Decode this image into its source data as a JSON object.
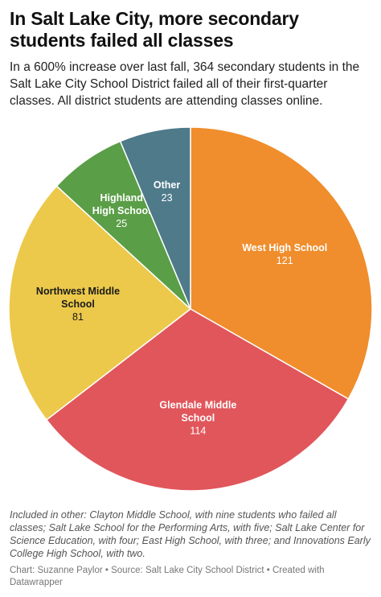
{
  "header": {
    "title": "In Salt Lake City, more secondary students failed all classes",
    "subtitle": "In a 600% increase over last fall, 364 secondary students in the Salt Lake City School District failed all of their first-quarter classes. All district students are attending classes online."
  },
  "chart_data": {
    "type": "pie",
    "slices": [
      {
        "label": [
          "West High School"
        ],
        "value": 121,
        "color": "#f08d2c",
        "text_color": "#ffffff",
        "bold_label": true
      },
      {
        "label": [
          "Glendale Middle",
          "School"
        ],
        "value": 114,
        "color": "#e0565b",
        "text_color": "#ffffff",
        "bold_label": true
      },
      {
        "label": [
          "Northwest Middle",
          "School"
        ],
        "value": 81,
        "color": "#ecc94b",
        "text_color": "#1a1a1a",
        "bold_label": true
      },
      {
        "label": [
          "Highland",
          "High School"
        ],
        "value": 25,
        "color": "#5a9e47",
        "text_color": "#ffffff",
        "bold_label": true
      },
      {
        "label": [
          "Other"
        ],
        "value": 23,
        "color": "#4e7a8a",
        "text_color": "#ffffff",
        "bold_label": true
      }
    ],
    "start": "12 o'clock",
    "direction": "clockwise"
  },
  "footer": {
    "notes": "Included in other: Clayton Middle School, with nine students who failed all classes; Salt Lake School for the Performing Arts, with five; Salt Lake Center for Science Education, with four; East High School, with three; and Innovations Early College High School, with two.",
    "credits": "Chart: Suzanne Paylor • Source: Salt Lake City School District • Created with Datawrapper"
  }
}
